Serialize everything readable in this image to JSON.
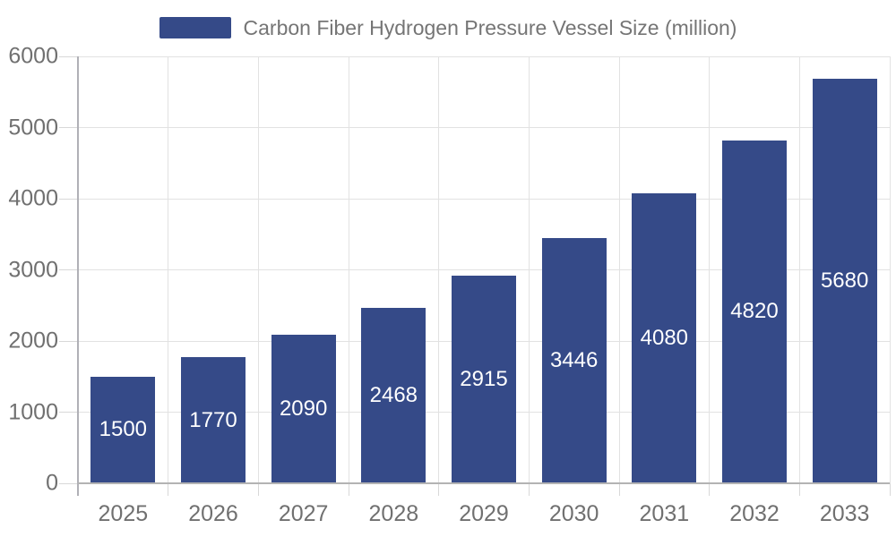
{
  "chart_data": {
    "type": "bar",
    "title": "Carbon Fiber Hydrogen Pressure Vessel Size (million)",
    "legend": [
      "Carbon Fiber Hydrogen Pressure Vessel Size (million)"
    ],
    "legend_position": "top-center",
    "categories": [
      "2025",
      "2026",
      "2027",
      "2028",
      "2029",
      "2030",
      "2031",
      "2032",
      "2033"
    ],
    "values": [
      1500,
      1770,
      2090,
      2468,
      2915,
      3446,
      4080,
      4820,
      5680
    ],
    "value_labels_shown": true,
    "value_label_position": "inside-center",
    "xlabel": "",
    "ylabel": "",
    "ylim": [
      0,
      6000
    ],
    "ytick_interval": 1000,
    "ytick_labels": [
      "0",
      "1000",
      "2000",
      "3000",
      "4000",
      "5000",
      "6000"
    ],
    "grid": true,
    "colors": {
      "bar": "#354a88",
      "grid_line": "#e2e2e2",
      "tick_line": "#d8d8d8",
      "x_axis_line": "#b3b3b3",
      "y_axis_line": "#b0b0b6",
      "axis_label": "#707070",
      "legend_label": "#757575",
      "value_label": "#ffffff",
      "background": "#ffffff"
    }
  }
}
